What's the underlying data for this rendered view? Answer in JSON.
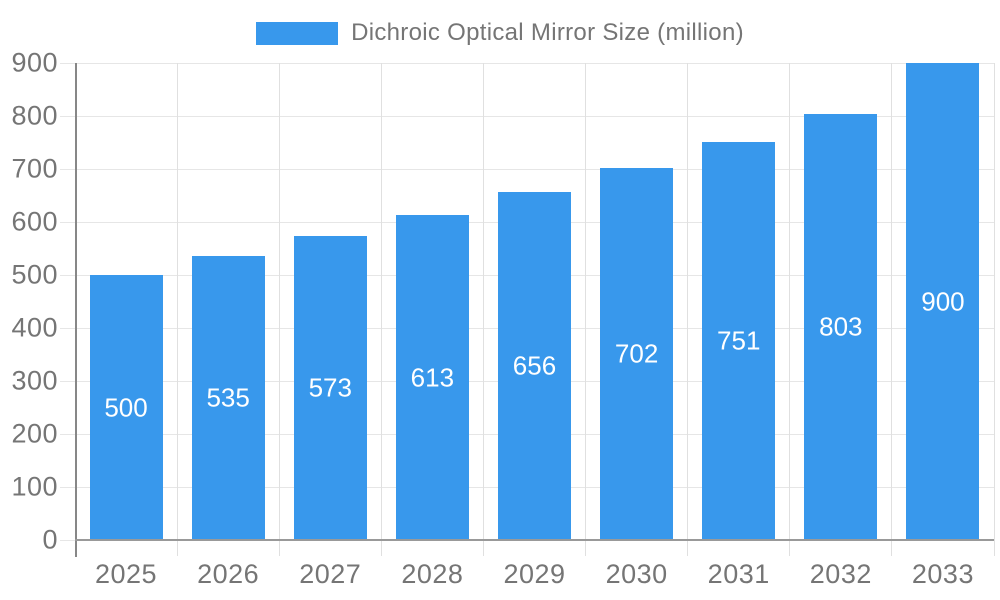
{
  "chart_data": {
    "type": "bar",
    "title": "Dichroic Optical Mirror Size (million)",
    "categories": [
      "2025",
      "2026",
      "2027",
      "2028",
      "2029",
      "2030",
      "2031",
      "2032",
      "2033"
    ],
    "values": [
      500,
      535,
      573,
      613,
      656,
      702,
      751,
      803,
      900
    ],
    "xlabel": "",
    "ylabel": "",
    "ylim": [
      0,
      900
    ],
    "yticks": [
      0,
      100,
      200,
      300,
      400,
      500,
      600,
      700,
      800,
      900
    ],
    "grid": true,
    "legend_position": "top-center",
    "value_labels": "inside-center",
    "colors": {
      "bar": "#3898ec",
      "value_label": "#ffffff",
      "axis_label": "#757575",
      "h_gridline": "#e6e6e6",
      "v_gridline": "#e0e0e0",
      "y_axis_line": "#878787",
      "x_axis_line": "#999999",
      "background": "#ffffff"
    }
  }
}
